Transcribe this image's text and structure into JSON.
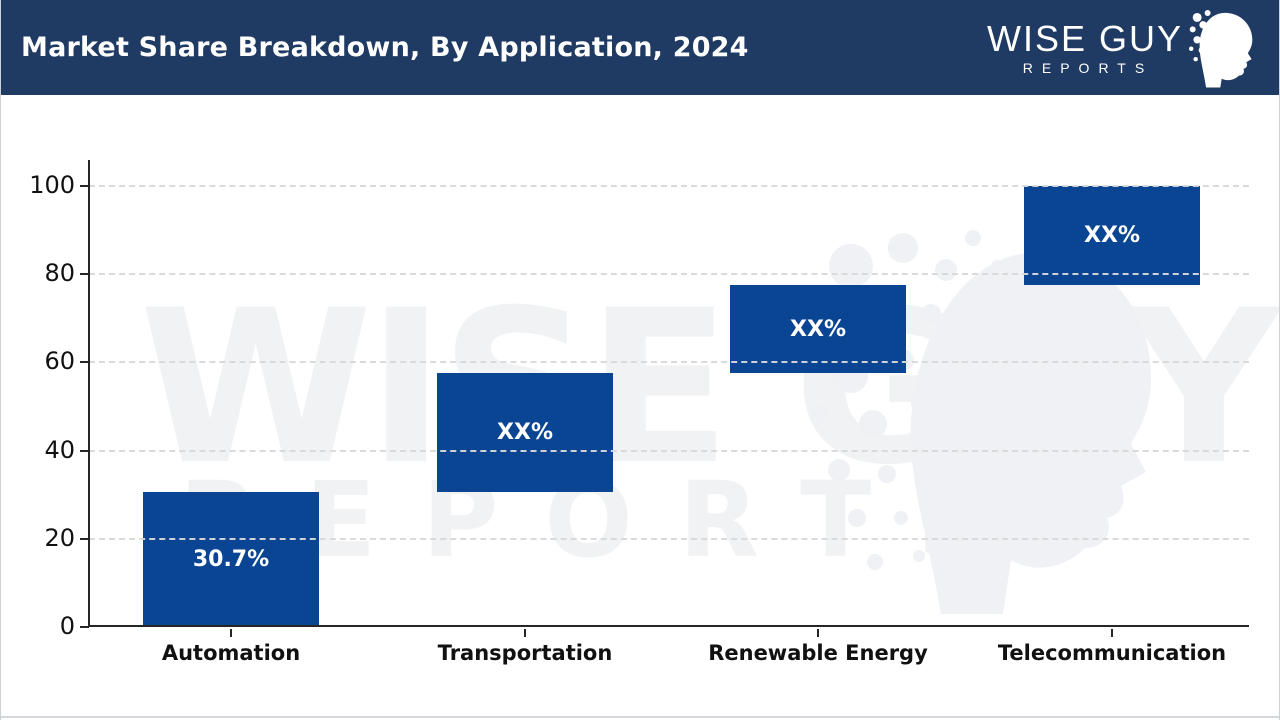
{
  "header": {
    "title": "Market Share Breakdown, By Application, 2024",
    "brand": {
      "name": "WISE GUY",
      "sub": "REPORTS"
    }
  },
  "watermark": {
    "line1": "WISE GUY",
    "line2": "REPORTS"
  },
  "colors": {
    "header_navy": "#1f3a63",
    "bar_blue": "#0a4594",
    "gridline_gray": "#d9d9d9",
    "watermark_gray": "#f1f2f4",
    "axis_black": "#262626",
    "label_white": "#ffffff"
  },
  "chart_data": {
    "type": "waterfall",
    "title": "Market Share Breakdown, By Application, 2024",
    "categories": [
      "Automation",
      "Transportation",
      "Renewable Energy",
      "Telecommunication"
    ],
    "segments": [
      {
        "category": "Automation",
        "start": 0,
        "end": 30.7,
        "label": "30.7%"
      },
      {
        "category": "Transportation",
        "start": 30.7,
        "end": 57.5,
        "label": "XX%"
      },
      {
        "category": "Renewable Energy",
        "start": 57.5,
        "end": 77.5,
        "label": "XX%"
      },
      {
        "category": "Telecommunication",
        "start": 77.5,
        "end": 100,
        "label": "XX%"
      }
    ],
    "yticks": [
      0,
      20,
      40,
      60,
      80,
      100
    ],
    "ylim": [
      0,
      105
    ],
    "xlabel": "",
    "ylabel": "",
    "grid": "dashed-horizontal-over-bars",
    "legend": "none"
  }
}
